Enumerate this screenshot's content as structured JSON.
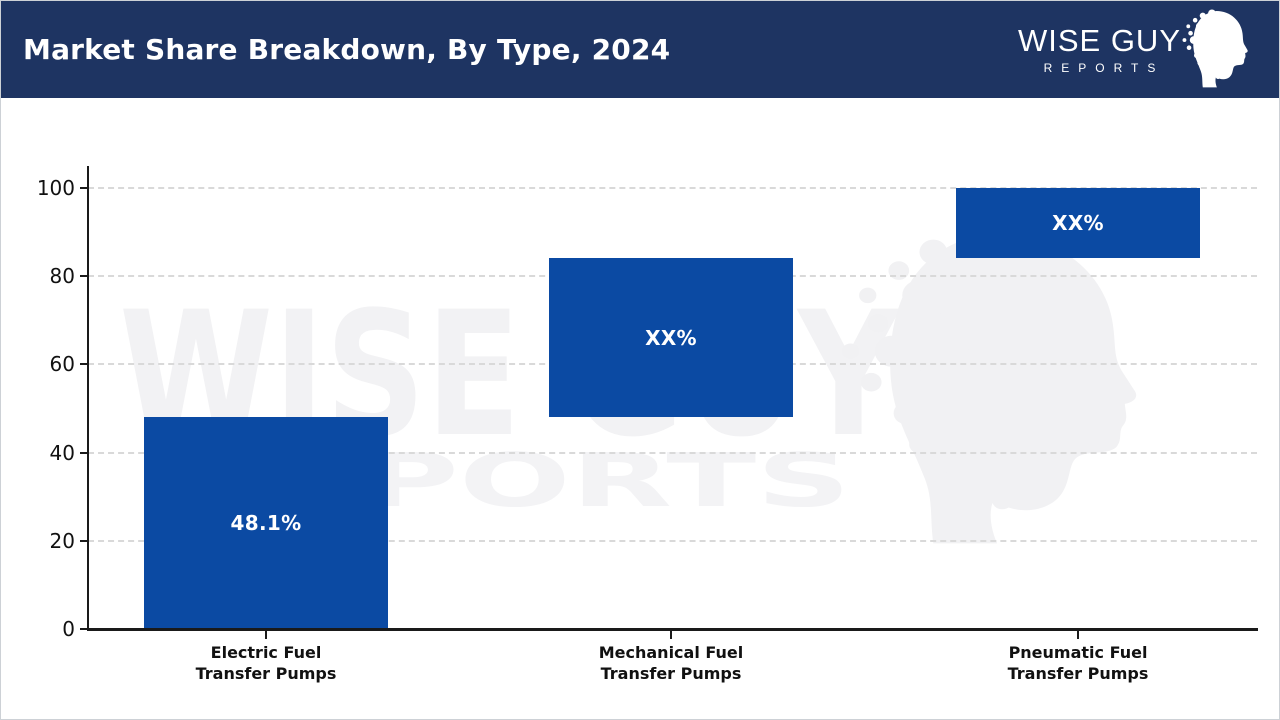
{
  "header": {
    "title": "Market Share Breakdown, By Type, 2024",
    "logo": {
      "line1": "WISE GUY",
      "line2": "REPORTS"
    }
  },
  "watermark": {
    "line1": "WISE GUY",
    "line2": "REPORTS"
  },
  "chart_data": {
    "type": "bar",
    "subtype": "waterfall",
    "title": "Market Share Breakdown, By Type, 2024",
    "categories": [
      "Electric Fuel\nTransfer Pumps",
      "Mechanical Fuel\nTransfer Pumps",
      "Pneumatic Fuel\nTransfer Pumps"
    ],
    "segments": [
      {
        "category": "Electric Fuel Transfer Pumps",
        "start": 0,
        "end": 48.1,
        "label": "48.1%"
      },
      {
        "category": "Mechanical Fuel Transfer Pumps",
        "start": 48.1,
        "end": 84.1,
        "label": "XX%"
      },
      {
        "category": "Pneumatic Fuel Transfer Pumps",
        "start": 84.1,
        "end": 100,
        "label": "XX%"
      }
    ],
    "y_ticks": [
      0,
      20,
      40,
      60,
      80,
      100
    ],
    "ylim": [
      0,
      105
    ],
    "xlabel": "",
    "ylabel": "",
    "grid": "horizontal-dashed",
    "legend": "none",
    "colors": {
      "bar": "#0b4aa3",
      "header": "#1e3462",
      "grid": "#d9d9d9",
      "axis": "#1a1a1a",
      "bar_label": "#ffffff",
      "tick_text": "#111111",
      "watermark": "#f2f2f4"
    }
  }
}
